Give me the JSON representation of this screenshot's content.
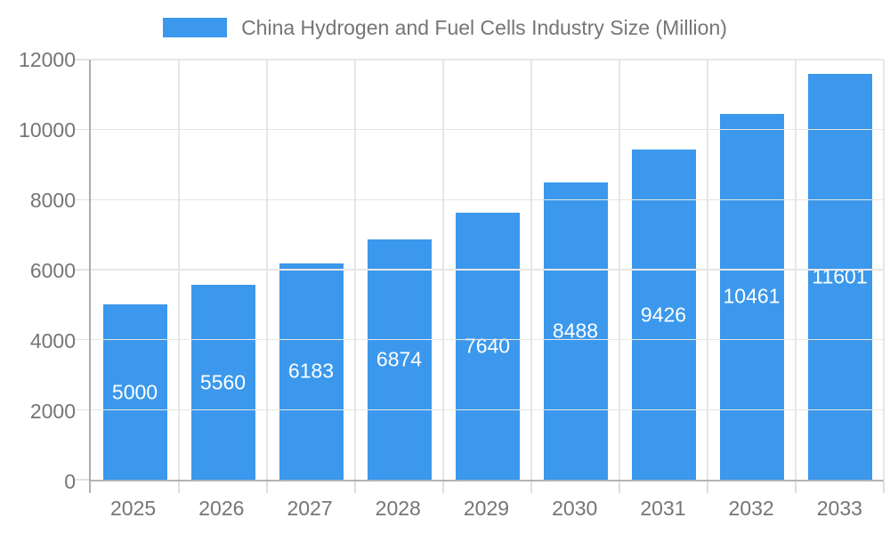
{
  "chart_data": {
    "type": "bar",
    "title": "China Hydrogen and Fuel Cells Industry Size (Million)",
    "categories": [
      "2025",
      "2026",
      "2027",
      "2028",
      "2029",
      "2030",
      "2031",
      "2032",
      "2033"
    ],
    "values": [
      5000,
      5560,
      6183,
      6874,
      7640,
      8488,
      9426,
      10461,
      11601
    ],
    "xlabel": "",
    "ylabel": "",
    "ylim": [
      0,
      12000
    ],
    "yticks": [
      0,
      2000,
      4000,
      6000,
      8000,
      10000,
      12000
    ],
    "grid": "horizontal gridlines at y ticks and vertical gridlines at category boundaries",
    "legend_position": "top-center",
    "value_labels": "white, centered inside each bar",
    "colors": {
      "bar": "#3b98ec",
      "bar_value_text": "#ffffff",
      "axis_text": "#757575",
      "legend_text": "#757575",
      "axis_line": "#b0b0b0",
      "gridline": "#e6e6e6",
      "background": "#ffffff"
    }
  }
}
